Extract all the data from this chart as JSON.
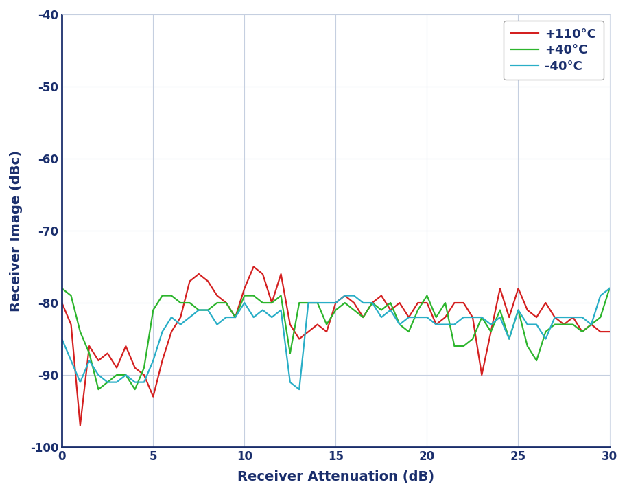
{
  "title": "",
  "xlabel": "Receiver Attenuation (dB)",
  "ylabel": "Receiver Image (dBc)",
  "xlim": [
    0,
    30
  ],
  "ylim": [
    -100,
    -40
  ],
  "yticks": [
    -100,
    -90,
    -80,
    -70,
    -60,
    -50,
    -40
  ],
  "xticks": [
    0,
    5,
    10,
    15,
    20,
    25,
    30
  ],
  "background_color": "#ffffff",
  "fig_facecolor": "#ffffff",
  "grid_color": "#c5cfe0",
  "spine_color": "#1a2e6c",
  "tick_color": "#1a2e6c",
  "label_color": "#1a2e6c",
  "legend_labels": [
    "+110°C",
    "+40°C",
    "-40°C"
  ],
  "line_colors": [
    "#d42020",
    "#2db52d",
    "#29aec7"
  ],
  "line_width": 1.6,
  "x_110": [
    0,
    0.5,
    1.0,
    1.5,
    2.0,
    2.5,
    3.0,
    3.5,
    4.0,
    4.5,
    5.0,
    5.5,
    6.0,
    6.5,
    7.0,
    7.5,
    8.0,
    8.5,
    9.0,
    9.5,
    10.0,
    10.5,
    11.0,
    11.5,
    12.0,
    12.5,
    13.0,
    13.5,
    14.0,
    14.5,
    15.0,
    15.5,
    16.0,
    16.5,
    17.0,
    17.5,
    18.0,
    18.5,
    19.0,
    19.5,
    20.0,
    20.5,
    21.0,
    21.5,
    22.0,
    22.5,
    23.0,
    23.5,
    24.0,
    24.5,
    25.0,
    25.5,
    26.0,
    26.5,
    27.0,
    27.5,
    28.0,
    28.5,
    29.0,
    29.5,
    30.0
  ],
  "y_110": [
    -80,
    -83,
    -97,
    -86,
    -88,
    -87,
    -89,
    -86,
    -89,
    -90,
    -93,
    -88,
    -84,
    -82,
    -77,
    -76,
    -77,
    -79,
    -80,
    -82,
    -78,
    -75,
    -76,
    -80,
    -76,
    -83,
    -85,
    -84,
    -83,
    -84,
    -80,
    -79,
    -80,
    -82,
    -80,
    -79,
    -81,
    -80,
    -82,
    -80,
    -80,
    -83,
    -82,
    -80,
    -80,
    -82,
    -90,
    -84,
    -78,
    -82,
    -78,
    -81,
    -82,
    -80,
    -82,
    -83,
    -82,
    -84,
    -83,
    -84,
    -84
  ],
  "x_40": [
    0,
    0.5,
    1.0,
    1.5,
    2.0,
    2.5,
    3.0,
    3.5,
    4.0,
    4.5,
    5.0,
    5.5,
    6.0,
    6.5,
    7.0,
    7.5,
    8.0,
    8.5,
    9.0,
    9.5,
    10.0,
    10.5,
    11.0,
    11.5,
    12.0,
    12.5,
    13.0,
    13.5,
    14.0,
    14.5,
    15.0,
    15.5,
    16.0,
    16.5,
    17.0,
    17.5,
    18.0,
    18.5,
    19.0,
    19.5,
    20.0,
    20.5,
    21.0,
    21.5,
    22.0,
    22.5,
    23.0,
    23.5,
    24.0,
    24.5,
    25.0,
    25.5,
    26.0,
    26.5,
    27.0,
    27.5,
    28.0,
    28.5,
    29.0,
    29.5,
    30.0
  ],
  "y_40": [
    -78,
    -79,
    -84,
    -87,
    -92,
    -91,
    -90,
    -90,
    -92,
    -89,
    -81,
    -79,
    -79,
    -80,
    -80,
    -81,
    -81,
    -80,
    -80,
    -82,
    -79,
    -79,
    -80,
    -80,
    -79,
    -87,
    -80,
    -80,
    -80,
    -83,
    -81,
    -80,
    -81,
    -82,
    -80,
    -81,
    -80,
    -83,
    -84,
    -81,
    -79,
    -82,
    -80,
    -86,
    -86,
    -85,
    -82,
    -84,
    -81,
    -85,
    -81,
    -86,
    -88,
    -84,
    -83,
    -83,
    -83,
    -84,
    -83,
    -82,
    -78
  ],
  "x_m40": [
    0,
    0.5,
    1.0,
    1.5,
    2.0,
    2.5,
    3.0,
    3.5,
    4.0,
    4.5,
    5.0,
    5.5,
    6.0,
    6.5,
    7.0,
    7.5,
    8.0,
    8.5,
    9.0,
    9.5,
    10.0,
    10.5,
    11.0,
    11.5,
    12.0,
    12.5,
    13.0,
    13.5,
    14.0,
    14.5,
    15.0,
    15.5,
    16.0,
    16.5,
    17.0,
    17.5,
    18.0,
    18.5,
    19.0,
    19.5,
    20.0,
    20.5,
    21.0,
    21.5,
    22.0,
    22.5,
    23.0,
    23.5,
    24.0,
    24.5,
    25.0,
    25.5,
    26.0,
    26.5,
    27.0,
    27.5,
    28.0,
    28.5,
    29.0,
    29.5,
    30.0
  ],
  "y_m40": [
    -85,
    -88,
    -91,
    -88,
    -90,
    -91,
    -91,
    -90,
    -91,
    -91,
    -88,
    -84,
    -82,
    -83,
    -82,
    -81,
    -81,
    -83,
    -82,
    -82,
    -80,
    -82,
    -81,
    -82,
    -81,
    -91,
    -92,
    -80,
    -80,
    -80,
    -80,
    -79,
    -79,
    -80,
    -80,
    -82,
    -81,
    -83,
    -82,
    -82,
    -82,
    -83,
    -83,
    -83,
    -82,
    -82,
    -82,
    -83,
    -82,
    -85,
    -81,
    -83,
    -83,
    -85,
    -82,
    -82,
    -82,
    -82,
    -83,
    -79,
    -78
  ]
}
